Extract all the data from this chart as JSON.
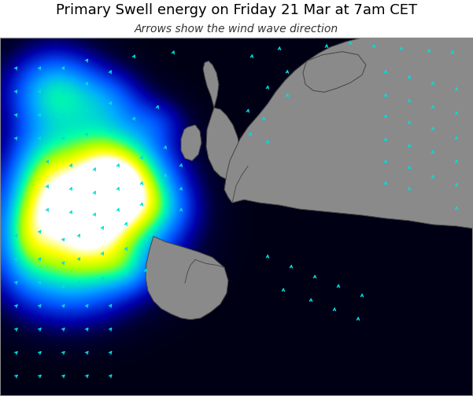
{
  "title": "Primary Swell energy on Friday 21 Mar at 7am CET",
  "subtitle": "Arrows show the wind wave direction",
  "title_fontsize": 13,
  "subtitle_fontsize": 10,
  "fig_width": 6.01,
  "fig_height": 5.04,
  "dpi": 100,
  "bg_color": "#ffffff",
  "map_bg": "#000010",
  "header_bg": "#f0f0f0",
  "border_color": "#888888"
}
